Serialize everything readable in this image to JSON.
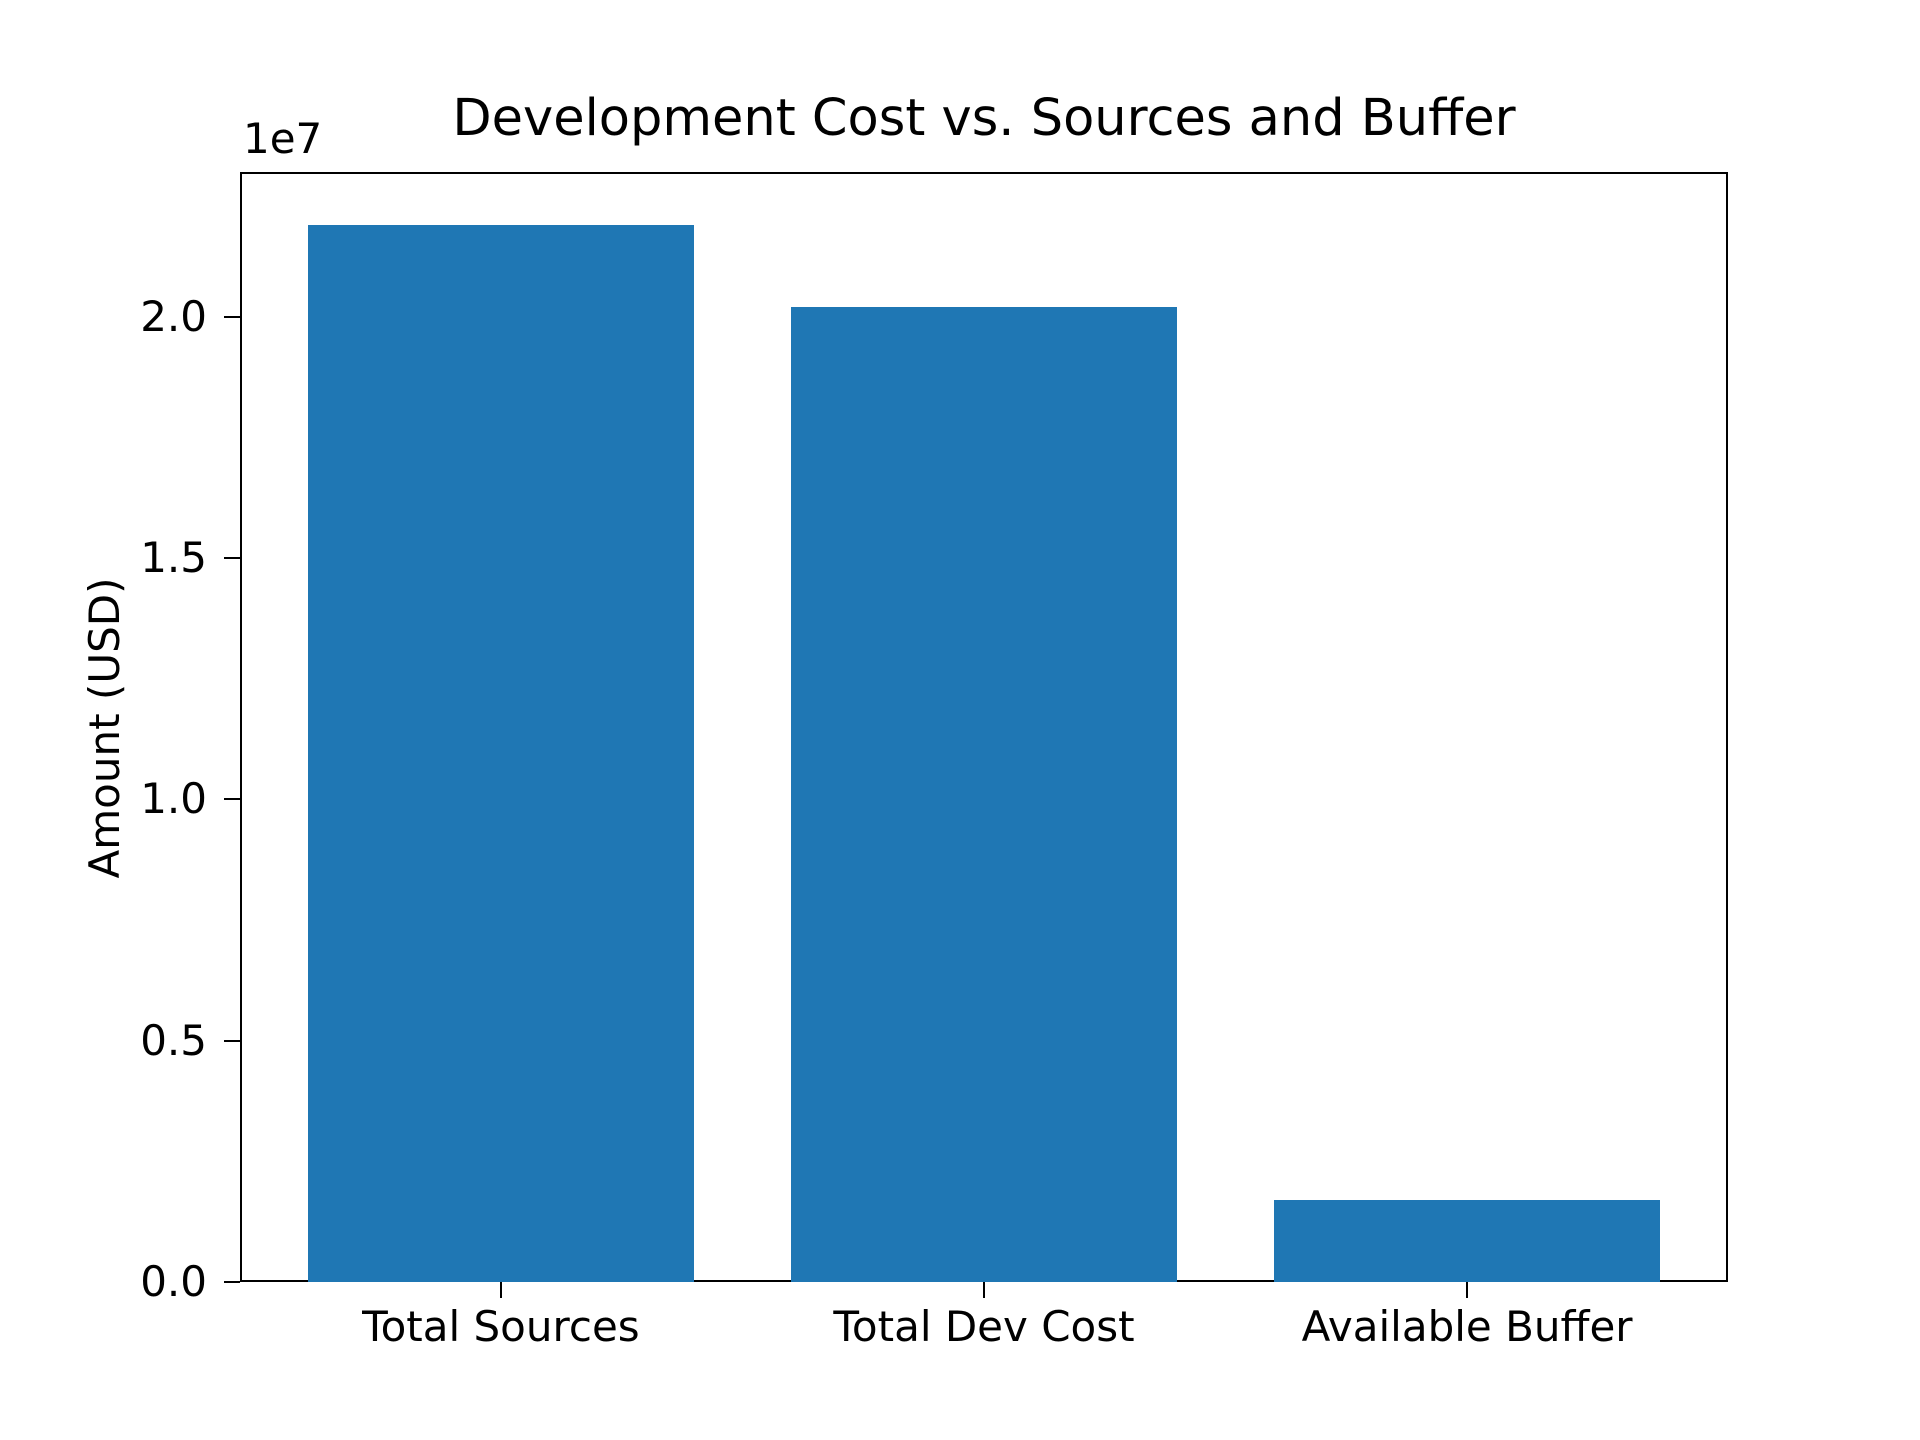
{
  "figure": {
    "background_color": "#ffffff",
    "text_color": "#000000"
  },
  "chart_data": {
    "type": "bar",
    "title": "Development Cost vs. Sources and Buffer",
    "xlabel": "",
    "ylabel": "Amount (USD)",
    "categories": [
      "Total Sources",
      "Total Dev Cost",
      "Available Buffer"
    ],
    "values": [
      21900000,
      20200000,
      1700000
    ],
    "bar_color": "#1f77b4",
    "bar_width": 0.8,
    "grid": false,
    "legend": "none",
    "x_axis": {
      "x_min": -0.54,
      "x_max": 2.54
    },
    "y_axis": {
      "y_min": 0,
      "y_max": 23000000,
      "offset_label": "1e7",
      "tick_values": [
        0,
        5000000,
        10000000,
        15000000,
        20000000
      ],
      "tick_labels": [
        "0.0",
        "0.5",
        "1.0",
        "1.5",
        "2.0"
      ]
    }
  }
}
